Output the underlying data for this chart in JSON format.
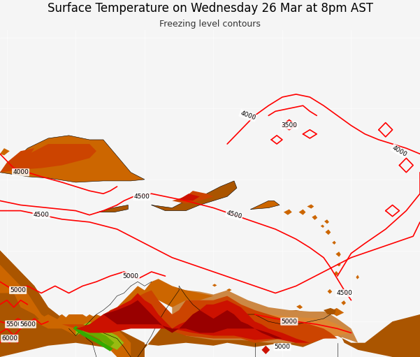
{
  "title": "Surface Temperature on Wednesday 26 Mar at 8pm AST",
  "subtitle": "Freezing level contours",
  "title_fontsize": 12,
  "subtitle_fontsize": 9,
  "ocean_color": "#c8cfe8",
  "contour_color": "#ff0000",
  "contour_linewidth": 1.2,
  "grid_color": "#ffffff",
  "header_bg": "#f5f5f5",
  "figsize": [
    6.01,
    5.11
  ],
  "dpi": 100,
  "lon_min": -85.5,
  "lon_max": -55.0,
  "lat_min": 7.5,
  "lat_max": 30.5
}
